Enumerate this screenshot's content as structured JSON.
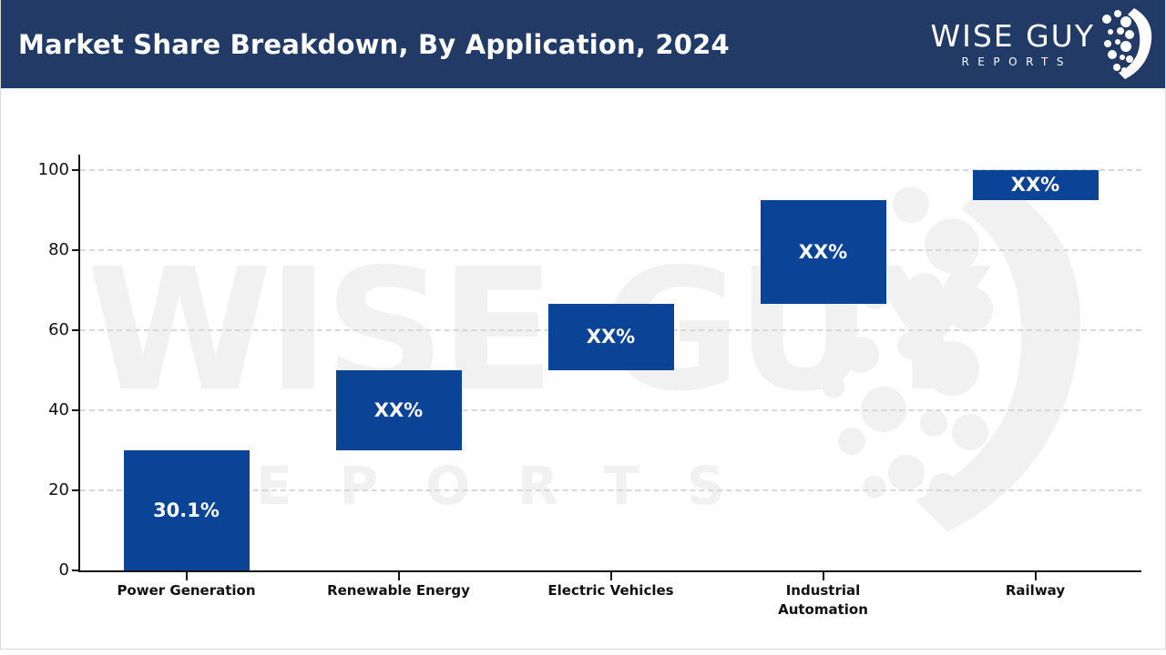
{
  "header": {
    "title": "Market Share Breakdown, By Application, 2024",
    "logo": {
      "line1": "WISE GUY",
      "line2": "REPORTS"
    }
  },
  "watermark": {
    "line1": "WISE GUY",
    "line2": "REPORTS"
  },
  "colors": {
    "header_bg": "#213a66",
    "bar": "#0b4397",
    "grid": "#d8d8d8",
    "axis": "#151515",
    "watermark": "#f1f1f1",
    "label_text": "#ffffff"
  },
  "chart_data": {
    "type": "bar",
    "subtype": "waterfall",
    "title": "Market Share Breakdown, By Application, 2024",
    "categories": [
      "Power Generation",
      "Renewable Energy",
      "Electric Vehicles",
      "Industrial Automation",
      "Railway"
    ],
    "bars": [
      {
        "category": "Power Generation",
        "start": 0,
        "end": 30.1,
        "label": "30.1%"
      },
      {
        "category": "Renewable Energy",
        "start": 30.1,
        "end": 50.0,
        "label": "XX%"
      },
      {
        "category": "Electric Vehicles",
        "start": 50.0,
        "end": 66.7,
        "label": "XX%"
      },
      {
        "category": "Industrial Automation",
        "start": 66.7,
        "end": 92.6,
        "label": "XX%"
      },
      {
        "category": "Railway",
        "start": 92.6,
        "end": 100,
        "label": "XX%"
      }
    ],
    "ylabel": "",
    "xlabel": "",
    "ylim": [
      0,
      100
    ],
    "yticks": [
      0,
      20,
      40,
      60,
      80,
      100
    ],
    "grid": "horizontal-dashed",
    "legend": "none"
  }
}
